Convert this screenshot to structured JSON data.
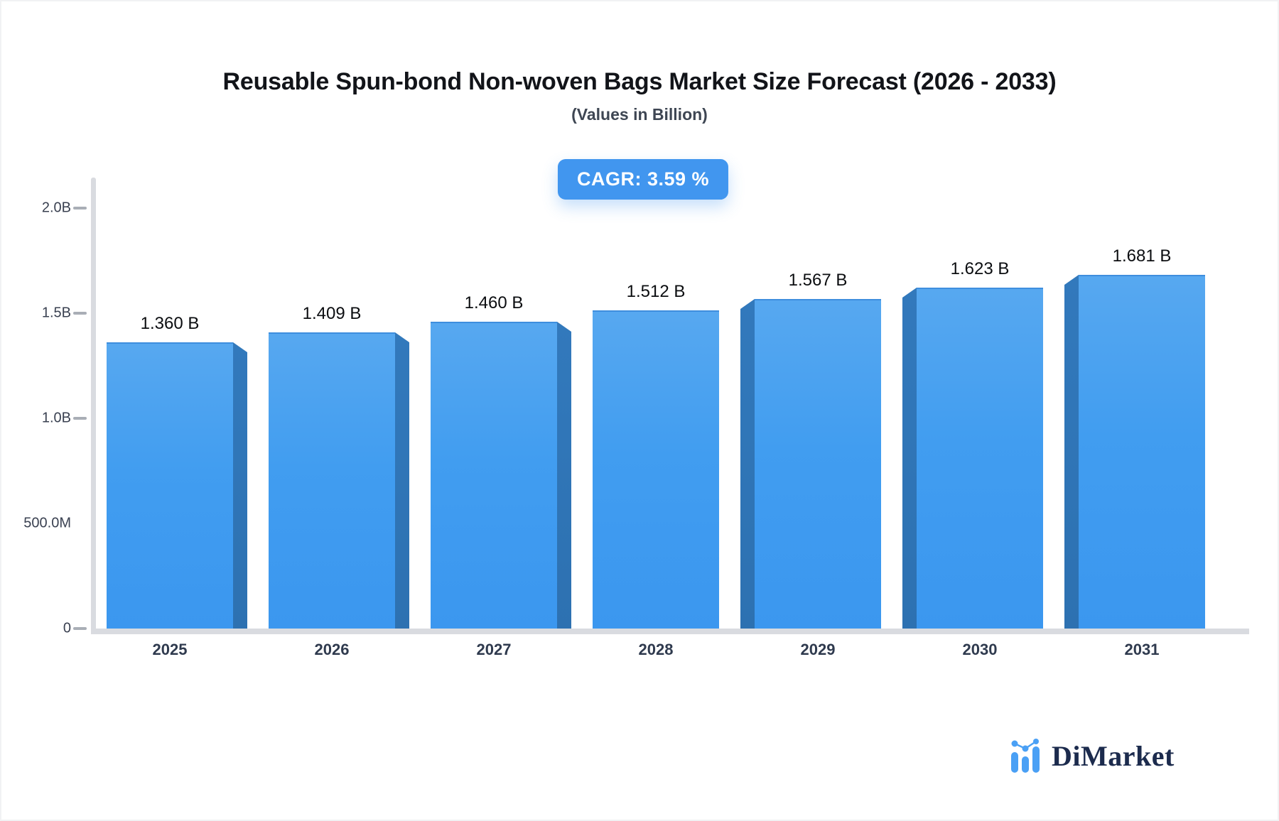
{
  "page": {
    "title": "Reusable Spun-bond Non-woven Bags Market Size Forecast (2026 - 2033)",
    "subtitle": "(Values in Billion)",
    "cagr_badge": "CAGR: 3.59 %"
  },
  "brand": {
    "logo_text": "DiMarket",
    "logo_icon": "bar-line-chart-icon"
  },
  "colors": {
    "bar_face_top": "#57a8f0",
    "bar_face_bottom": "#3b97ef",
    "bar_side": "#2d71b1",
    "badge_bg": "#4196ef",
    "axis_line": "#d9dbe0",
    "tick_dash": "#a9aeb6",
    "logo_text": "#1c2b4d",
    "logo_icon": "#4aa0f5"
  },
  "chart_data": {
    "type": "bar",
    "style": "3d-perspective-bars",
    "title": "Reusable Spun-bond Non-woven Bags Market Size Forecast (2026 - 2033)",
    "subtitle": "(Values in Billion)",
    "annotation": "CAGR: 3.59 %",
    "categories": [
      "2025",
      "2026",
      "2027",
      "2028",
      "2029",
      "2030",
      "2031"
    ],
    "values": [
      1.36,
      1.409,
      1.46,
      1.512,
      1.567,
      1.623,
      1.681
    ],
    "value_labels": [
      "1.360 B",
      "1.409 B",
      "1.460 B",
      "1.512 B",
      "1.567 B",
      "1.623 B",
      "1.681 B"
    ],
    "unit": "B",
    "ylim": [
      0,
      2.0
    ],
    "y_ticks": [
      {
        "label": "2.0B",
        "value": 2.0,
        "dash": true
      },
      {
        "label": "1.5B",
        "value": 1.5,
        "dash": true
      },
      {
        "label": "1.0B",
        "value": 1.0,
        "dash": true
      },
      {
        "label": "500.0M",
        "value": 0.5,
        "dash": false
      },
      {
        "label": "0",
        "value": 0.0,
        "dash": true
      }
    ],
    "xlabel": "",
    "ylabel": "",
    "grid": false,
    "legend": false
  }
}
